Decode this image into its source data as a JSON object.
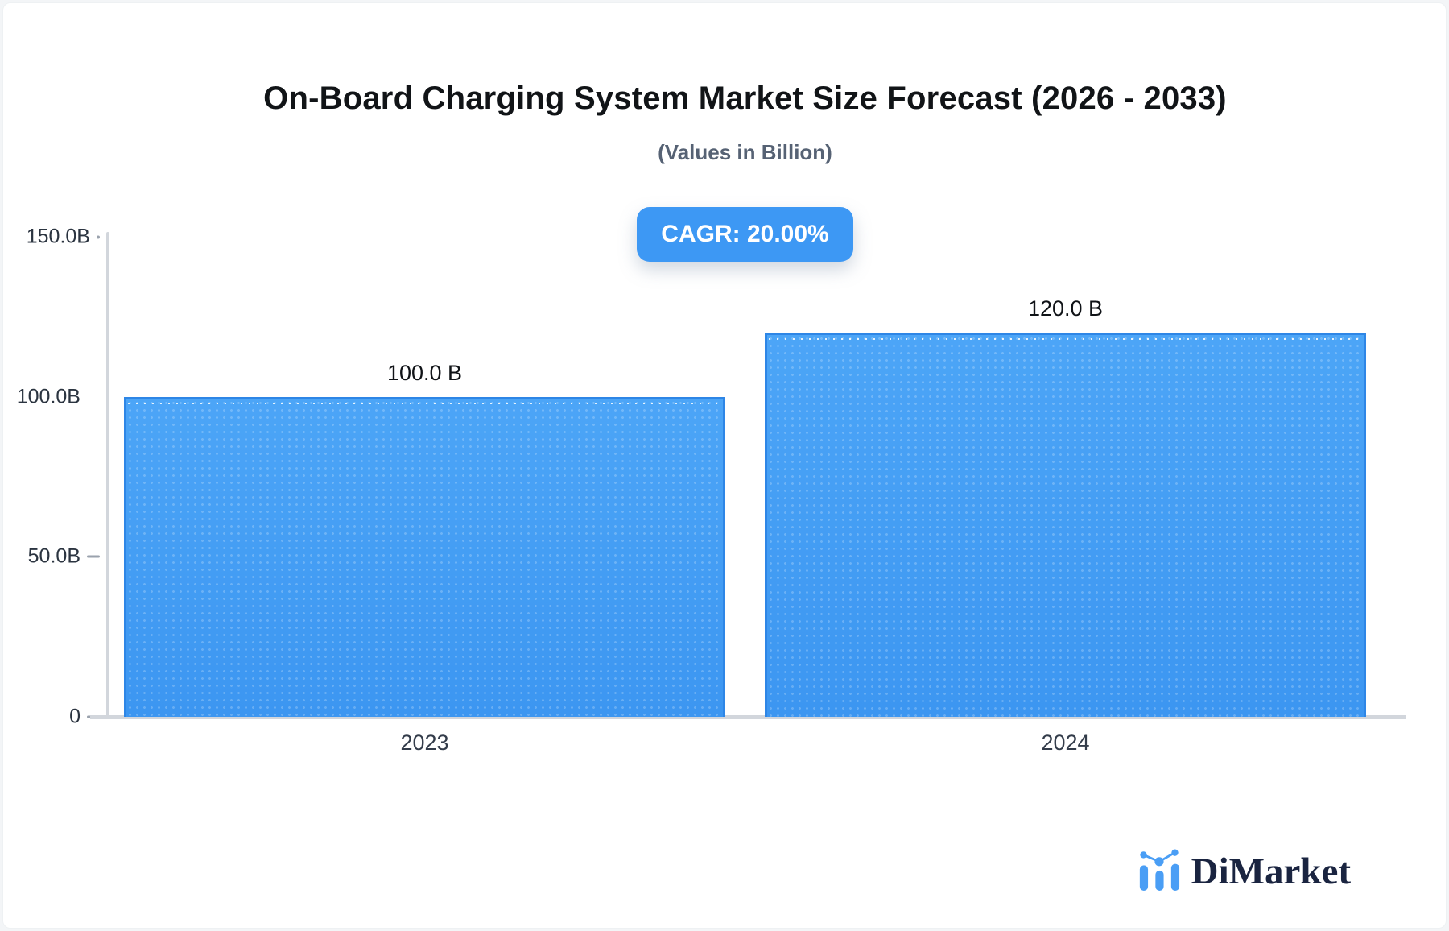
{
  "chart_data": {
    "type": "bar",
    "title": "On-Board Charging System Market Size Forecast (2026 - 2033)",
    "subtitle": "(Values in Billion)",
    "annotation": "CAGR: 20.00%",
    "categories": [
      "2023",
      "2024"
    ],
    "values": [
      100.0,
      120.0
    ],
    "bar_labels": [
      "100.0 B",
      "120.0 B"
    ],
    "xlabel": "",
    "ylabel": "",
    "ylim": [
      0,
      150
    ],
    "yticks": [
      {
        "label": "150.0B",
        "value": 150,
        "mark": "dot"
      },
      {
        "label": "100.0B",
        "value": 100,
        "mark": "none"
      },
      {
        "label": "50.0B",
        "value": 50,
        "mark": "dash"
      },
      {
        "label": "0",
        "value": 0,
        "mark": "dash"
      }
    ],
    "grid": false,
    "legend": false
  },
  "branding": {
    "logo_text": "DiMarket",
    "logo_icon": "bar-line-chart-icon"
  },
  "colors": {
    "card_bg": "#ffffff",
    "badge_bg": "#3d98f4",
    "badge_text": "#ffffff",
    "bar_fill_top": "#4ca5f7",
    "bar_fill_bottom": "#3c96f1",
    "bar_border": "#2e86e6",
    "axis": "#d2d6dc",
    "title_text": "#111417",
    "subtitle_text": "#566274",
    "tick_text": "#2b3440",
    "logo_navy": "#1a2440",
    "logo_blue": "#4a9ef5"
  }
}
